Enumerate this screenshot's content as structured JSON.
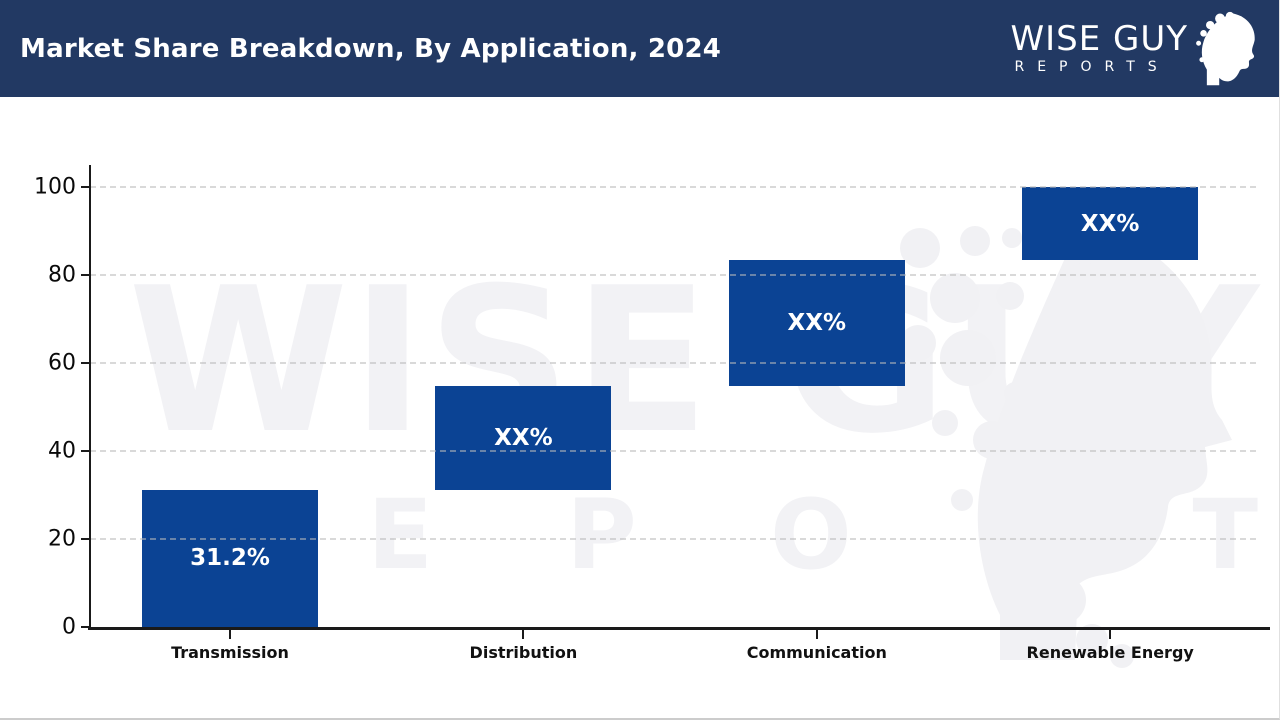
{
  "header": {
    "title": "Market Share Breakdown, By Application, 2024",
    "logo": {
      "line1": "WISE GUY",
      "line2": "REPORTS"
    }
  },
  "watermark": {
    "line1": "WISE GUY",
    "line2": "R E P O R T S"
  },
  "colors": {
    "header_bg": "#223963",
    "bar": "#0b4394",
    "bar_label": "#ffffff",
    "axis": "#1a1a1a",
    "grid": "#e3e3e3",
    "watermark": "#f2f2f5"
  },
  "chart_data": {
    "type": "bar",
    "subtype": "waterfall",
    "title": "Market Share Breakdown, By Application, 2024",
    "categories": [
      "Transmission",
      "Distribution",
      "Communication",
      "Renewable Energy"
    ],
    "segments": [
      {
        "category": "Transmission",
        "start": 0,
        "end": 31.2,
        "label": "31.2%"
      },
      {
        "category": "Distribution",
        "start": 31.2,
        "end": 54.8,
        "label": "XX%"
      },
      {
        "category": "Communication",
        "start": 54.8,
        "end": 83.3,
        "label": "XX%"
      },
      {
        "category": "Renewable Energy",
        "start": 83.3,
        "end": 100,
        "label": "XX%"
      }
    ],
    "ylim": [
      0,
      100
    ],
    "yticks": [
      0,
      20,
      40,
      60,
      80,
      100
    ],
    "grid": "dashed-horizontal",
    "legend": "none",
    "xlabel": "",
    "ylabel": ""
  }
}
